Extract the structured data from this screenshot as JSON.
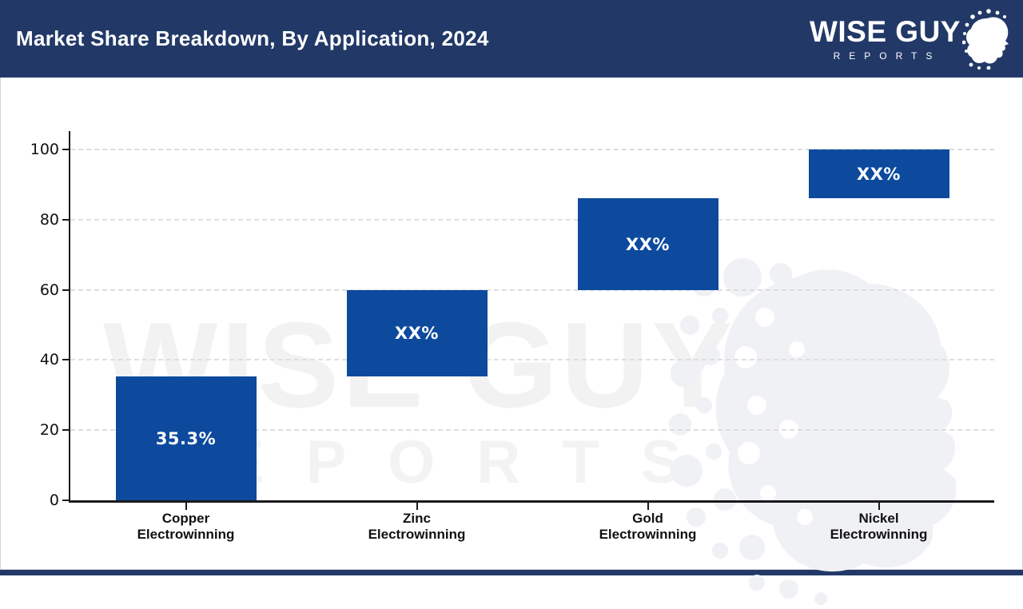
{
  "header": {
    "title": "Market Share Breakdown, By Application, 2024",
    "logo": {
      "name": "WISE GUY",
      "subtitle": "REPORTS"
    }
  },
  "watermark": {
    "line1": "WISE GUY",
    "line2": "REPORTS"
  },
  "colors": {
    "header_navy": "#223968",
    "bar_blue": "#0d4a9e",
    "grid_gray": "#dedede",
    "axis_black": "#1a1a1a",
    "value_label_white": "#ffffff",
    "watermark_gray": "#f0f1f4"
  },
  "chart_data": {
    "type": "bar",
    "subtype": "waterfall-floating-bars",
    "title": "Market Share Breakdown, By Application, 2024",
    "categories": [
      [
        "Copper",
        "Electrowinning"
      ],
      [
        "Zinc",
        "Electrowinning"
      ],
      [
        "Gold",
        "Electrowinning"
      ],
      [
        "Nickel",
        "Electrowinning"
      ]
    ],
    "segments": [
      {
        "name": "Copper Electrowinning",
        "from": 0,
        "to": 35.3,
        "label": "35.3%"
      },
      {
        "name": "Zinc Electrowinning",
        "from": 35.3,
        "to": 60,
        "label": "XX%"
      },
      {
        "name": "Gold Electrowinning",
        "from": 60,
        "to": 86,
        "label": "XX%"
      },
      {
        "name": "Nickel Electrowinning",
        "from": 86,
        "to": 100,
        "label": "XX%"
      }
    ],
    "yticks": [
      0,
      20,
      40,
      60,
      80,
      100
    ],
    "ylim": [
      0,
      105
    ],
    "xlabel": "",
    "ylabel": "",
    "grid": "horizontal-dashed",
    "legend": "none"
  }
}
